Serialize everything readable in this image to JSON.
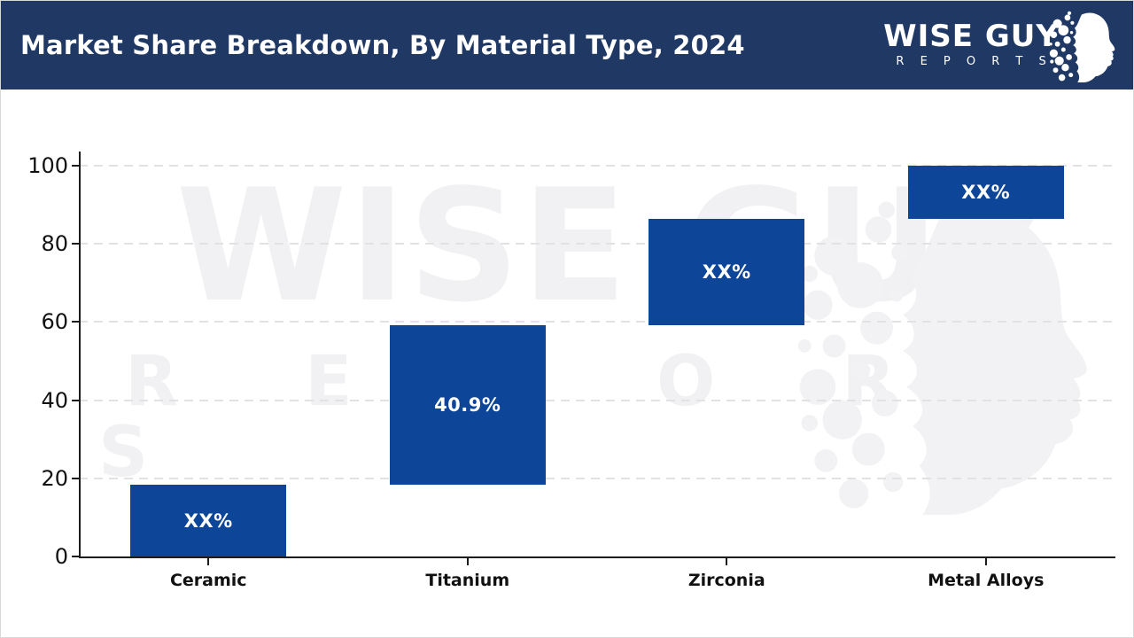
{
  "header": {
    "title": "Market Share Breakdown, By Material Type, 2024",
    "logo": {
      "line1": "WISE GUY",
      "line2": "REPORTS"
    }
  },
  "watermark": {
    "line1": "WISE GUY",
    "line2": "REPORTS"
  },
  "colors": {
    "header_bg": "#1f3864",
    "bar": "#0d4599",
    "bar_label": "#ffffff",
    "axis": "#1c1c1c",
    "gridline": "#e2e2e4",
    "watermark": "#f1f1f3"
  },
  "chart_data": {
    "type": "bar",
    "variant": "waterfall",
    "title": "Market Share Breakdown, By Material Type, 2024",
    "categories": [
      "Ceramic",
      "Titanium",
      "Zirconia",
      "Metal Alloys"
    ],
    "segments": [
      {
        "category": "Ceramic",
        "start": 0,
        "end": 18.3,
        "height": 18.3,
        "label": "XX%"
      },
      {
        "category": "Titanium",
        "start": 18.3,
        "end": 59.2,
        "height": 40.9,
        "label": "40.9%"
      },
      {
        "category": "Zirconia",
        "start": 59.2,
        "end": 86.4,
        "height": 27.2,
        "label": "XX%"
      },
      {
        "category": "Metal Alloys",
        "start": 86.4,
        "end": 100,
        "height": 13.6,
        "label": "XX%"
      }
    ],
    "xlabel": "",
    "ylabel": "",
    "ylim": [
      0,
      100
    ],
    "yticks": [
      0,
      20,
      40,
      60,
      80,
      100
    ],
    "grid": "horizontal-dashed",
    "legend": false,
    "bar_color": "#0d4599",
    "bar_label_color": "#ffffff"
  }
}
